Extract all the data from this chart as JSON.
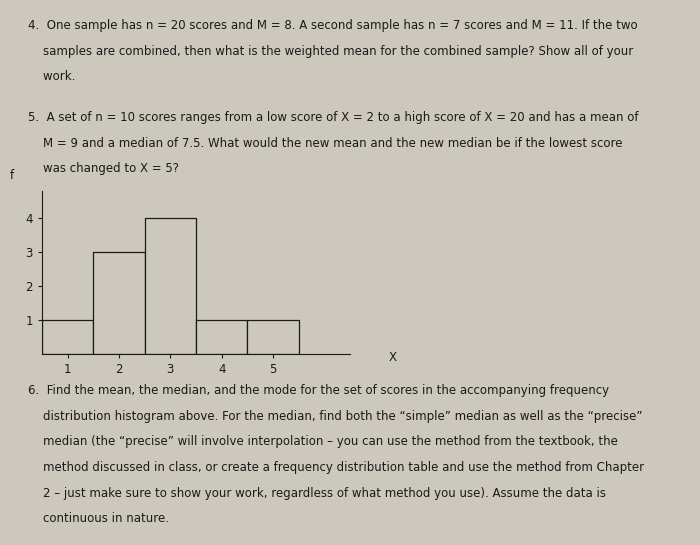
{
  "background_color": "#cdc8be",
  "text_color": "#1a1a1a",
  "hist_x": [
    1,
    2,
    3,
    4,
    5
  ],
  "hist_heights": [
    1,
    3,
    4,
    1,
    1
  ],
  "hist_xlabel": "X",
  "hist_ylabel": "f",
  "hist_xlim": [
    0.5,
    6.5
  ],
  "hist_ylim": [
    0,
    4.8
  ],
  "hist_yticks": [
    1,
    2,
    3,
    4
  ],
  "hist_xticks": [
    1,
    2,
    3,
    4,
    5
  ],
  "bar_color": "#cdc8be",
  "bar_edgecolor": "#1a1a1a",
  "fontsize_text": 8.5,
  "fontsize_axis": 8.5,
  "q4_lines": [
    "4.  One sample has n = 20 scores and M = 8. A second sample has n = 7 scores and M = 11. If the two",
    "    samples are combined, then what is the weighted mean for the combined sample? Show all of your",
    "    work."
  ],
  "q5_lines": [
    "5.  A set of n = 10 scores ranges from a low score of X = 2 to a high score of X = 20 and has a mean of",
    "    M = 9 and a median of 7.5. What would the new mean and the new median be if the lowest score",
    "    was changed to X = 5?"
  ],
  "q6_lines": [
    "6.  Find the mean, the median, and the mode for the set of scores in the accompanying frequency",
    "    distribution histogram above. For the median, find both the “simple” median as well as the “precise”",
    "    median (the “precise” will involve interpolation – you can use the method from the textbook, the",
    "    method discussed in class, or create a frequency distribution table and use the method from Chapter",
    "    2 – just make sure to show your work, regardless of what method you use). Assume the data is",
    "    continuous in nature."
  ]
}
